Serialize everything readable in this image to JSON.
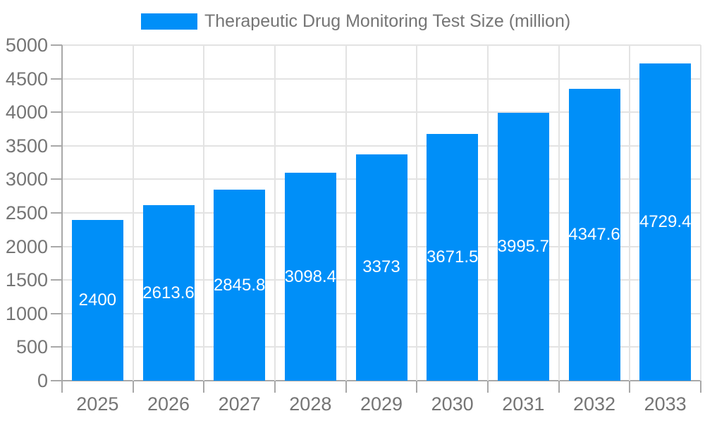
{
  "legend": {
    "label": "Therapeutic Drug Monitoring Test Size (million)",
    "marker_color": "#008ff8"
  },
  "chart_data": {
    "type": "bar",
    "title": "Therapeutic Drug Monitoring Test Size (million)",
    "categories": [
      "2025",
      "2026",
      "2027",
      "2028",
      "2029",
      "2030",
      "2031",
      "2032",
      "2033"
    ],
    "values": [
      2400,
      2613.6,
      2845.8,
      3098.4,
      3373,
      3671.5,
      3995.7,
      4347.6,
      4729.4
    ],
    "value_labels": [
      "2400",
      "2613.6",
      "2845.8",
      "3098.4",
      "3373",
      "3671.5",
      "3995.7",
      "4347.6",
      "4729.4"
    ],
    "xlabel": "",
    "ylabel": "",
    "ylim": [
      0,
      5000
    ],
    "ytick_step": 500,
    "ytick_labels": [
      "0",
      "500",
      "1000",
      "1500",
      "2000",
      "2500",
      "3000",
      "3500",
      "4000",
      "4500",
      "5000"
    ],
    "grid": true,
    "legend_position": "top-center",
    "bar_color": "#008ff8",
    "bar_label_color": "#ffffff",
    "axis_text_color": "#757575",
    "gridline_color": "#e3e3e3",
    "axis_line_color": "#a8a8a8"
  }
}
